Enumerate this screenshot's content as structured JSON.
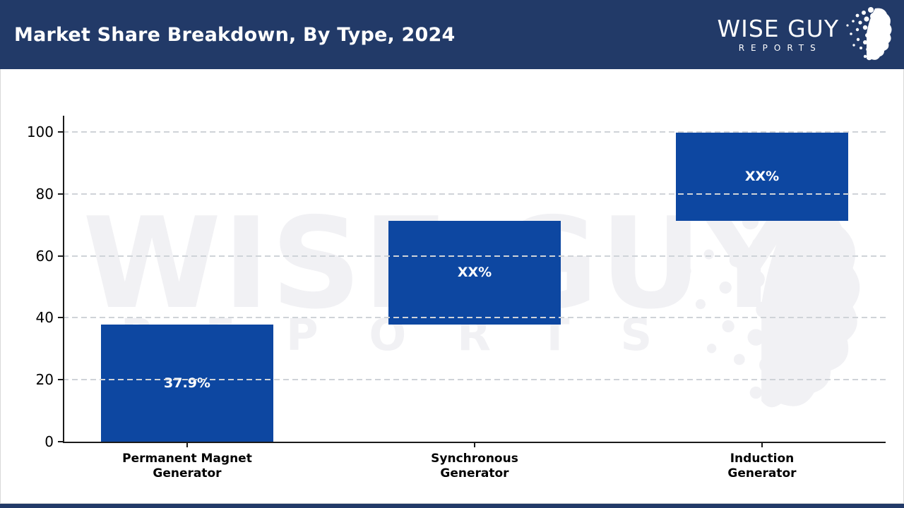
{
  "header": {
    "title": "Market Share Breakdown, By Type, 2024",
    "logo": {
      "line1": "WISE GUY",
      "line2": "REPORTS"
    }
  },
  "watermark": {
    "line1": "WISE GUY",
    "line2": "REPORTS"
  },
  "chart_data": {
    "type": "bar",
    "subtype": "floating-waterfall",
    "title": "Market Share Breakdown, By Type, 2024",
    "categories": [
      "Permanent Magnet\nGenerator",
      "Synchronous\nGenerator",
      "Induction\nGenerator"
    ],
    "bars": [
      {
        "category": "Permanent Magnet Generator",
        "label": "37.9%",
        "start": 0,
        "end": 37.9
      },
      {
        "category": "Synchronous Generator",
        "label": "XX%",
        "start": 37.9,
        "end": 71.3
      },
      {
        "category": "Induction Generator",
        "label": "XX%",
        "start": 71.3,
        "end": 99.8
      }
    ],
    "yticks": [
      0,
      20,
      40,
      60,
      80,
      100
    ],
    "ylim": [
      0,
      105
    ],
    "xlabel": "",
    "ylabel": "",
    "grid": "horizontal-dashed",
    "legend": "none",
    "bar_color": "#0d47a1",
    "bar_label_color": "#ffffff",
    "axis_color": "#1a1a1a",
    "grid_color": "#cfd3d8"
  },
  "colors": {
    "header_bg": "#223a68",
    "footer_bg": "#223a68",
    "watermark": "#f1f1f4",
    "page_bg": "#ffffff"
  }
}
